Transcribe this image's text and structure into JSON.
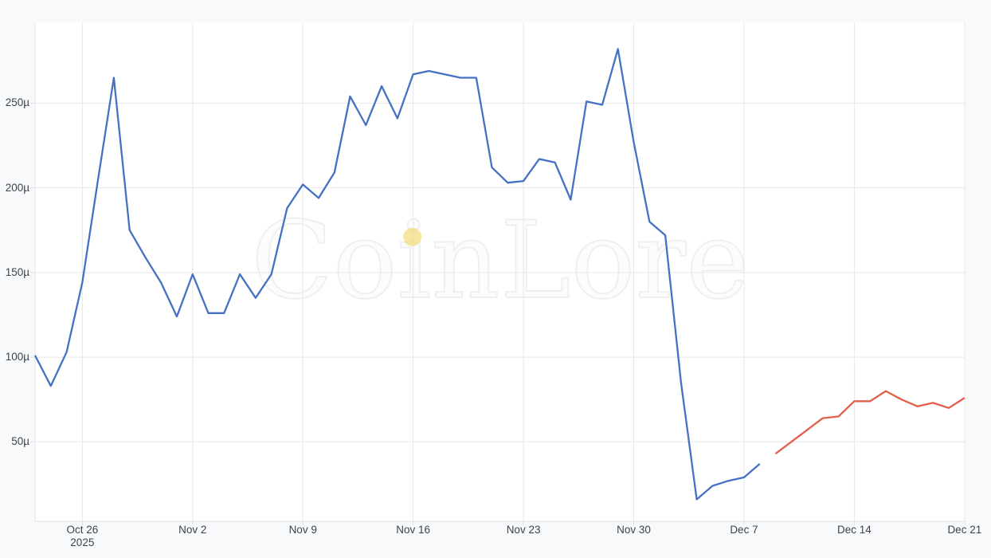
{
  "page": {
    "background": "#f8f9fa",
    "plot_background": "#ffffff",
    "grid_color": "#e6e7e9",
    "axis_color": "#dfe1e4",
    "label_color": "#3c434f"
  },
  "chart_data": {
    "type": "line",
    "title": "",
    "watermark_text": "CoinLore",
    "legend": "none",
    "grid": true,
    "y_axis": {
      "unit": "µ",
      "tick_labels": [
        "50µ",
        "100µ",
        "150µ",
        "200µ",
        "250µ"
      ],
      "tick_values": [
        50,
        100,
        150,
        200,
        250
      ],
      "range_approx": [
        3,
        298
      ]
    },
    "x_axis": {
      "ticks": [
        {
          "label": "Oct 26",
          "sublabel": "2025",
          "day_offset": 3
        },
        {
          "label": "Nov 2",
          "day_offset": 10
        },
        {
          "label": "Nov 9",
          "day_offset": 17
        },
        {
          "label": "Nov 16",
          "day_offset": 24
        },
        {
          "label": "Nov 23",
          "day_offset": 31
        },
        {
          "label": "Nov 30",
          "day_offset": 38
        },
        {
          "label": "Dec 7",
          "day_offset": 45
        },
        {
          "label": "Dec 14",
          "day_offset": 52
        },
        {
          "label": "Dec 21",
          "day_offset": 59
        }
      ]
    },
    "series": [
      {
        "name": "historical-price",
        "color": "#4471c4",
        "start_day_offset": 0,
        "dates": [
          "Oct 23",
          "Oct 24",
          "Oct 25",
          "Oct 26",
          "Oct 27",
          "Oct 28",
          "Oct 29",
          "Oct 30",
          "Oct 31",
          "Nov 1",
          "Nov 2",
          "Nov 3",
          "Nov 4",
          "Nov 5",
          "Nov 6",
          "Nov 7",
          "Nov 8",
          "Nov 9",
          "Nov 10",
          "Nov 11",
          "Nov 12",
          "Nov 13",
          "Nov 14",
          "Nov 15",
          "Nov 16",
          "Nov 17",
          "Nov 18",
          "Nov 19",
          "Nov 20",
          "Nov 21",
          "Nov 22",
          "Nov 23",
          "Nov 24",
          "Nov 25",
          "Nov 26",
          "Nov 27",
          "Nov 28",
          "Nov 29",
          "Nov 30",
          "Dec 1",
          "Dec 2",
          "Dec 3",
          "Dec 4",
          "Dec 5",
          "Dec 6",
          "Dec 7",
          "Dec 8"
        ],
        "values": [
          101,
          83,
          103,
          144,
          205,
          265,
          175,
          159,
          144,
          124,
          149,
          126,
          126,
          149,
          135,
          149,
          188,
          202,
          194,
          209,
          254,
          237,
          260,
          241,
          267,
          269,
          267,
          265,
          265,
          212,
          203,
          204,
          217,
          215,
          193,
          251,
          249,
          282,
          227,
          180,
          172,
          85,
          16,
          24,
          27,
          29,
          37
        ]
      },
      {
        "name": "forecast-price",
        "color": "#e2604a",
        "start_day_offset": 47,
        "dates": [
          "Dec 9",
          "Dec 10",
          "Dec 11",
          "Dec 12",
          "Dec 13",
          "Dec 14",
          "Dec 15",
          "Dec 16",
          "Dec 17",
          "Dec 18",
          "Dec 19",
          "Dec 20",
          "Dec 21"
        ],
        "values": [
          43,
          50,
          57,
          64,
          65,
          74,
          74,
          80,
          75,
          71,
          73,
          70,
          76
        ]
      }
    ],
    "marker_dot": {
      "day_offset": 24,
      "value": 171,
      "color": "#f2d96e",
      "opacity": 0.65
    }
  }
}
